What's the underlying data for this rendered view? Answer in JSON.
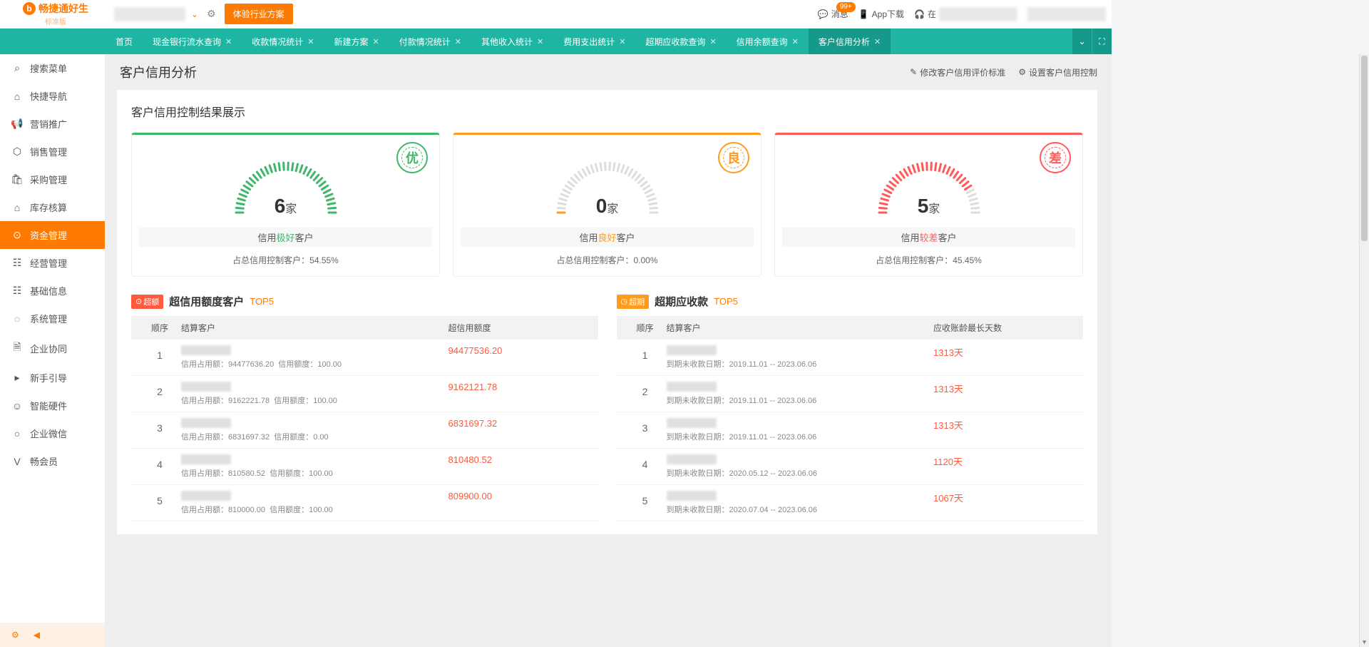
{
  "header": {
    "logo_text": "畅捷通好生",
    "logo_sub": "标准版",
    "experience_btn": "体验行业方案",
    "msg_label": "消息",
    "msg_badge": "99+",
    "app_download": "App下载",
    "online_prefix": "在"
  },
  "tabs": {
    "items": [
      {
        "label": "首页",
        "closable": false
      },
      {
        "label": "现金银行流水查询",
        "closable": true
      },
      {
        "label": "收款情况统计",
        "closable": true
      },
      {
        "label": "新建方案",
        "closable": true
      },
      {
        "label": "付款情况统计",
        "closable": true
      },
      {
        "label": "其他收入统计",
        "closable": true
      },
      {
        "label": "费用支出统计",
        "closable": true
      },
      {
        "label": "超期应收款查询",
        "closable": true
      },
      {
        "label": "信用余额查询",
        "closable": true
      },
      {
        "label": "客户信用分析",
        "closable": true,
        "active": true
      }
    ]
  },
  "sidebar": {
    "items": [
      {
        "icon": "⌕",
        "label": "搜索菜单"
      },
      {
        "icon": "⌂",
        "label": "快捷导航"
      },
      {
        "icon": "📢",
        "label": "营销推广"
      },
      {
        "icon": "⬡",
        "label": "销售管理"
      },
      {
        "icon": "🛍",
        "label": "采购管理"
      },
      {
        "icon": "⌂",
        "label": "库存核算"
      },
      {
        "icon": "⊙",
        "label": "资金管理",
        "active": true
      },
      {
        "icon": "☷",
        "label": "经营管理"
      },
      {
        "icon": "☷",
        "label": "基础信息"
      },
      {
        "icon": "◌",
        "label": "系统管理"
      },
      {
        "icon": "🗎",
        "label": "企业协同"
      },
      {
        "icon": "▸",
        "label": "新手引导"
      },
      {
        "icon": "☺",
        "label": "智能硬件"
      },
      {
        "icon": "○",
        "label": "企业微信"
      },
      {
        "icon": "V",
        "label": "畅会员"
      }
    ]
  },
  "page": {
    "title": "客户信用分析",
    "action1": "修改客户信用评价标准",
    "action2": "设置客户信用控制",
    "section_title": "客户信用控制结果展示",
    "pct_label": "占总信用控制客户：",
    "cards": [
      {
        "stamp": "优",
        "num": "6",
        "unit": "家",
        "label_pre": "信用",
        "label_mid": "极好",
        "label_post": "客户",
        "pct": "54.55%",
        "accent": "#3fb76a",
        "fill_ratio": 1.0
      },
      {
        "stamp": "良",
        "num": "0",
        "unit": "家",
        "label_pre": "信用",
        "label_mid": "良好",
        "label_post": "客户",
        "pct": "0.00%",
        "accent": "#ff9b1f",
        "fill_ratio": 0.0
      },
      {
        "stamp": "差",
        "num": "5",
        "unit": "家",
        "label_pre": "信用",
        "label_mid": "较差",
        "label_post": "客户",
        "pct": "45.45%",
        "accent": "#ff5a5a",
        "fill_ratio": 0.83
      }
    ],
    "credit_table": {
      "tag": "超额",
      "title": "超信用额度客户",
      "top": "TOP5",
      "col_seq": "顺序",
      "col_cust": "结算客户",
      "col_val": "超信用额度",
      "used_label": "信用占用额：",
      "limit_label": "信用额度：",
      "rows": [
        {
          "seq": "1",
          "used": "94477636.20",
          "limit": "100.00",
          "over": "94477536.20"
        },
        {
          "seq": "2",
          "used": "9162221.78",
          "limit": "100.00",
          "over": "9162121.78"
        },
        {
          "seq": "3",
          "used": "6831697.32",
          "limit": "0.00",
          "over": "6831697.32"
        },
        {
          "seq": "4",
          "used": "810580.52",
          "limit": "100.00",
          "over": "810480.52"
        },
        {
          "seq": "5",
          "used": "810000.00",
          "limit": "100.00",
          "over": "809900.00"
        }
      ]
    },
    "overdue_table": {
      "tag": "超期",
      "title": "超期应收款",
      "top": "TOP5",
      "col_seq": "顺序",
      "col_cust": "结算客户",
      "col_val": "应收账龄最长天数",
      "date_label": "到期未收款日期：",
      "rows": [
        {
          "seq": "1",
          "dates": "2019.11.01 -- 2023.06.06",
          "days": "1313天"
        },
        {
          "seq": "2",
          "dates": "2019.11.01 -- 2023.06.06",
          "days": "1313天"
        },
        {
          "seq": "3",
          "dates": "2019.11.01 -- 2023.06.06",
          "days": "1313天"
        },
        {
          "seq": "4",
          "dates": "2020.05.12 -- 2023.06.06",
          "days": "1120天"
        },
        {
          "seq": "5",
          "dates": "2020.07.04 -- 2023.06.06",
          "days": "1067天"
        }
      ]
    }
  }
}
